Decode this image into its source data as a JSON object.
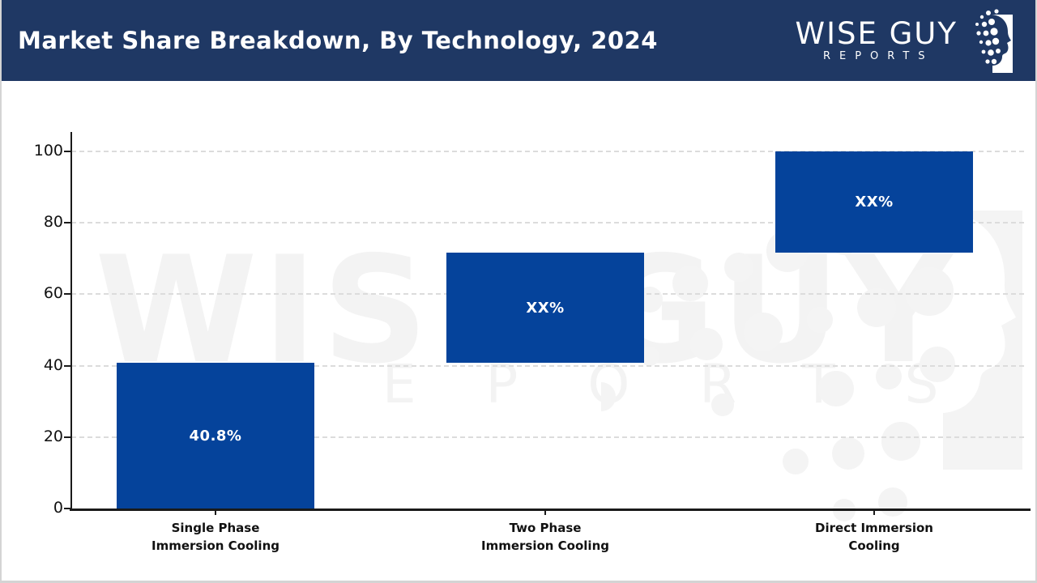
{
  "header": {
    "title": "Market Share Breakdown, By Technology, 2024",
    "logo": {
      "wordmark": "WISE GUY",
      "subtitle": "REPORTS"
    }
  },
  "watermark": {
    "line1": "WISE GUY",
    "line2": "REPORTS"
  },
  "colors": {
    "header_bg": "#1f3864",
    "bar": "#05439b",
    "bar_label": "#ffffff",
    "axis": "#1a1a1a",
    "grid": "#dcdcdc",
    "watermark": "#f3f3f3",
    "tick_label": "#111111"
  },
  "chart_data": {
    "type": "bar",
    "subtype": "floating segmented bars (waterfall style), values in percent",
    "title": "Market Share Breakdown, By Technology, 2024",
    "xlabel": "",
    "ylabel": "",
    "ylim": [
      0,
      105
    ],
    "yticks": [
      0,
      20,
      40,
      60,
      80,
      100
    ],
    "grid": "horizontal dashed",
    "legend": "none",
    "categories": [
      "Single Phase\nImmersion Cooling",
      "Two Phase\nImmersion Cooling",
      "Direct Immersion\nCooling"
    ],
    "bars": [
      {
        "category": "Single Phase Immersion Cooling",
        "start": 0,
        "end": 40.8,
        "label": "40.8%"
      },
      {
        "category": "Two Phase Immersion Cooling",
        "start": 40.8,
        "end": 71.6,
        "label": "XX%"
      },
      {
        "category": "Direct Immersion Cooling",
        "start": 71.6,
        "end": 100,
        "label": "XX%"
      }
    ]
  }
}
